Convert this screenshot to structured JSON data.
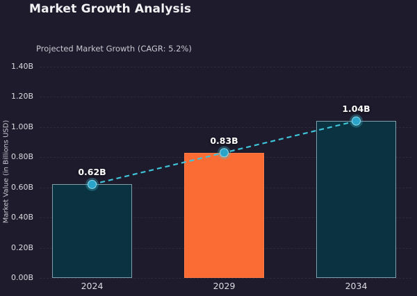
{
  "page": {
    "title": "Market Growth Analysis"
  },
  "chart_data": {
    "type": "bar",
    "title": "Projected Market Growth (CAGR: 5.2%)",
    "categories": [
      "2024",
      "2029",
      "2034"
    ],
    "values": [
      0.62,
      0.83,
      1.04
    ],
    "bar_labels": [
      "0.62B",
      "0.83B",
      "1.04B"
    ],
    "xlabel": "",
    "ylabel": "Market Value (in Billions USD)",
    "ylim": [
      0,
      1.4
    ],
    "yticks": [
      0,
      0.2,
      0.4,
      0.6,
      0.8,
      1.0,
      1.2,
      1.4
    ],
    "ytick_labels": [
      "0.00B",
      "0.20B",
      "0.40B",
      "0.60B",
      "0.80B",
      "1.00B",
      "1.20B",
      "1.40B"
    ],
    "grid": "horizontal dashed, subtle",
    "legend": "none",
    "overlay_line": {
      "type": "line",
      "style": "dashed with circular markers",
      "values": [
        0.62,
        0.83,
        1.04
      ]
    },
    "colors": {
      "background": "#1d1b2c",
      "bar_fills": [
        "#0b3240",
        "#fb6c35",
        "#0b3240"
      ],
      "bar_borders": [
        "#7fa0ad",
        "#fb7a45",
        "#7fa0ad"
      ],
      "trend_line": "#40c4d9",
      "marker_fill": "#2ba4c9",
      "marker_edge": "#8fdcec",
      "marker_glow": "rgba(64,196,217,0.30)",
      "title_text": "#f2f2f4",
      "subtitle_text": "#c9c9d2",
      "axis_text": "#dcdce2",
      "value_label_text": "#ffffff"
    }
  }
}
